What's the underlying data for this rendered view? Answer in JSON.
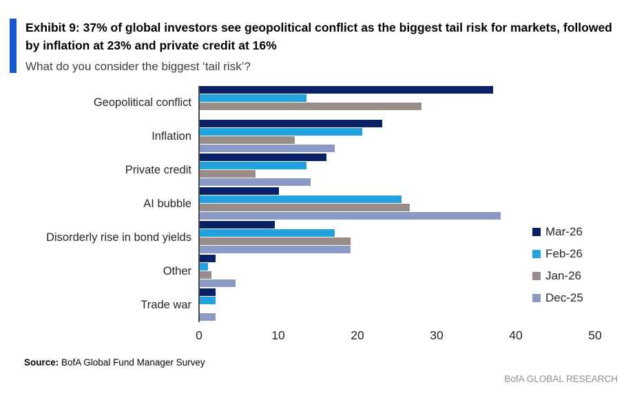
{
  "header": {
    "title": "Exhibit 9: 37% of global investors see geopolitical conflict as the biggest tail risk for markets, followed by inflation at 23% and private credit at 16%",
    "subtitle": "What do you consider the biggest ‘tail risk’?",
    "accent_color": "#1659cc"
  },
  "chart_data": {
    "type": "bar",
    "orientation": "horizontal",
    "title": "What do you consider the biggest ‘tail risk’?",
    "categories": [
      "Geopolitical conflict",
      "Inflation",
      "Private credit",
      "AI bubble",
      "Disorderly rise in bond yields",
      "Other",
      "Trade war"
    ],
    "series": [
      {
        "name": "Mar-26",
        "color": "#0b2166",
        "values": [
          37,
          23,
          16,
          10,
          9.5,
          2,
          2
        ]
      },
      {
        "name": "Feb-26",
        "color": "#21a1dd",
        "values": [
          13.5,
          20.5,
          13.5,
          25.5,
          17,
          1,
          2
        ]
      },
      {
        "name": "Jan-26",
        "color": "#978c88",
        "values": [
          28,
          12,
          7,
          26.5,
          19,
          1.5,
          0
        ]
      },
      {
        "name": "Dec-25",
        "color": "#8b9ac5",
        "values": [
          0,
          17,
          14,
          38,
          19,
          4.5,
          2
        ]
      }
    ],
    "xlim": [
      0,
      50
    ],
    "xticks": [
      0,
      10,
      20,
      30,
      40,
      50
    ],
    "xlabel": "",
    "ylabel": "",
    "grid": false,
    "legend_position": "right"
  },
  "footer": {
    "source_label": "Source:",
    "source_text": " BofA Global Fund Manager Survey",
    "brand": "BofA GLOBAL RESEARCH"
  }
}
